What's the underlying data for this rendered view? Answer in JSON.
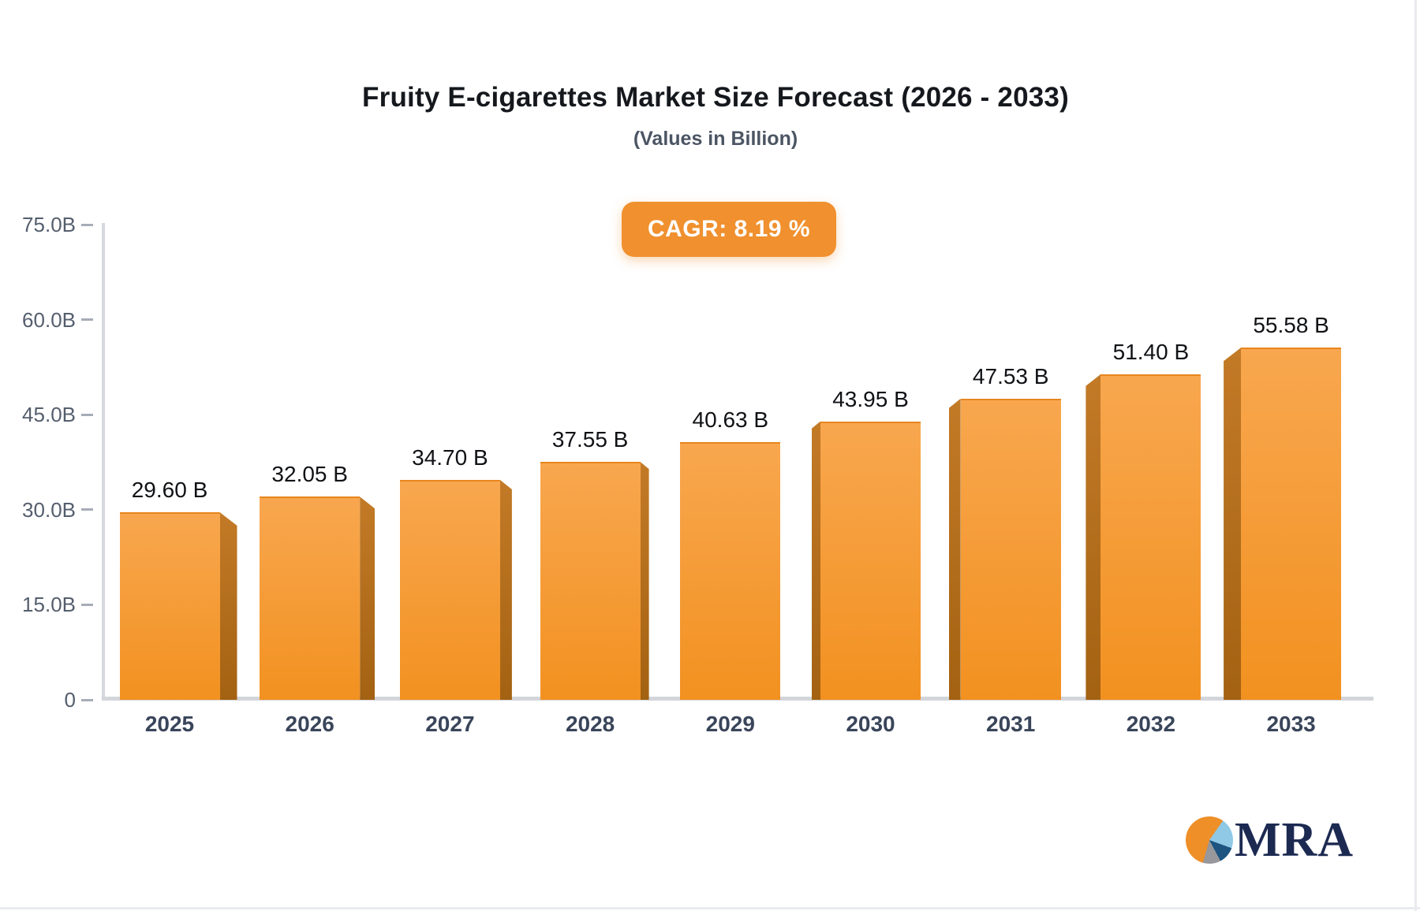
{
  "header": {
    "title": "Fruity E-cigarettes Market Size Forecast (2026 - 2033)",
    "subtitle": "(Values in Billion)",
    "cagr_badge_label": "CAGR: 8.19 %",
    "cagr_badge_color": "#f0902e"
  },
  "chart_data": {
    "type": "bar",
    "title": "Fruity E-cigarettes Market Size Forecast (2026 - 2033)",
    "subtitle": "(Values in Billion)",
    "categories": [
      "2025",
      "2026",
      "2027",
      "2028",
      "2029",
      "2030",
      "2031",
      "2032",
      "2033"
    ],
    "values": [
      29.6,
      32.05,
      34.7,
      37.55,
      40.63,
      43.95,
      47.53,
      51.4,
      55.58
    ],
    "bar_labels": [
      "29.60 B",
      "32.05 B",
      "34.70 B",
      "37.55 B",
      "40.63 B",
      "43.95 B",
      "47.53 B",
      "51.40 B",
      "55.58 B"
    ],
    "unit": "Billion",
    "cagr_percent": 8.19,
    "xlabel": "",
    "ylabel": "",
    "ylim": [
      0,
      75
    ],
    "ytick_labels": [
      "0",
      "15.0B",
      "30.0B",
      "45.0B",
      "60.0B",
      "75.0B"
    ],
    "grid": false,
    "legend": "none",
    "bar_style": "3d-extruded",
    "bar_color_top": "#f8a74f",
    "bar_color_bottom": "#f29120",
    "bar_side_color": "#b26f1b"
  },
  "logo": {
    "text": "MRA",
    "pie_icon_colors": [
      "#ee8f28",
      "#8fc9e6",
      "#1d5480",
      "#97979c"
    ]
  }
}
